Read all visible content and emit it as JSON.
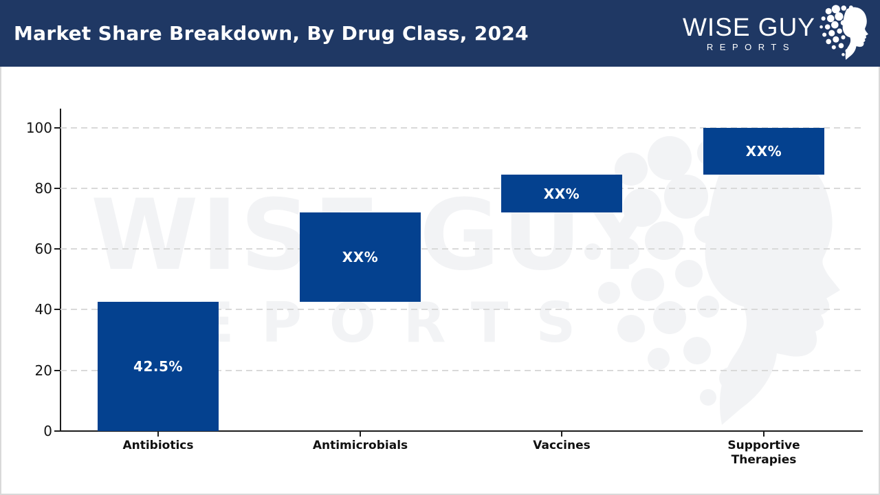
{
  "header": {
    "title": "Market Share Breakdown, By Drug Class, 2024",
    "brand_line1": "WISE GUY",
    "brand_line2": "REPORTS"
  },
  "watermark": {
    "line1": "WISE GUY",
    "line2": "REPORTS"
  },
  "colors": {
    "header_bg": "#1f3864",
    "bar": "#04418f",
    "bar_label": "#ffffff",
    "grid": "#d9d9d9",
    "axis": "#1c1c1c",
    "watermark": "#f2f3f5"
  },
  "chart_data": {
    "type": "bar",
    "subtype": "waterfall",
    "title": "Market Share Breakdown, By Drug Class, 2024",
    "categories": [
      "Antibiotics",
      "Antimicrobials",
      "Vaccines",
      "Supportive Therapies"
    ],
    "segments": [
      {
        "category": "Antibiotics",
        "start": 0,
        "end": 42.5,
        "label": "42.5%"
      },
      {
        "category": "Antimicrobials",
        "start": 42.5,
        "end": 72,
        "label": "XX%"
      },
      {
        "category": "Vaccines",
        "start": 72,
        "end": 84.5,
        "label": "XX%"
      },
      {
        "category": "Supportive Therapies",
        "start": 84.5,
        "end": 100,
        "label": "XX%"
      }
    ],
    "yticks": [
      0,
      20,
      40,
      60,
      80,
      100
    ],
    "ylim": [
      0,
      106
    ],
    "xlabel": "",
    "ylabel": "",
    "grid": "dashed-horizontal",
    "legend": "none"
  }
}
